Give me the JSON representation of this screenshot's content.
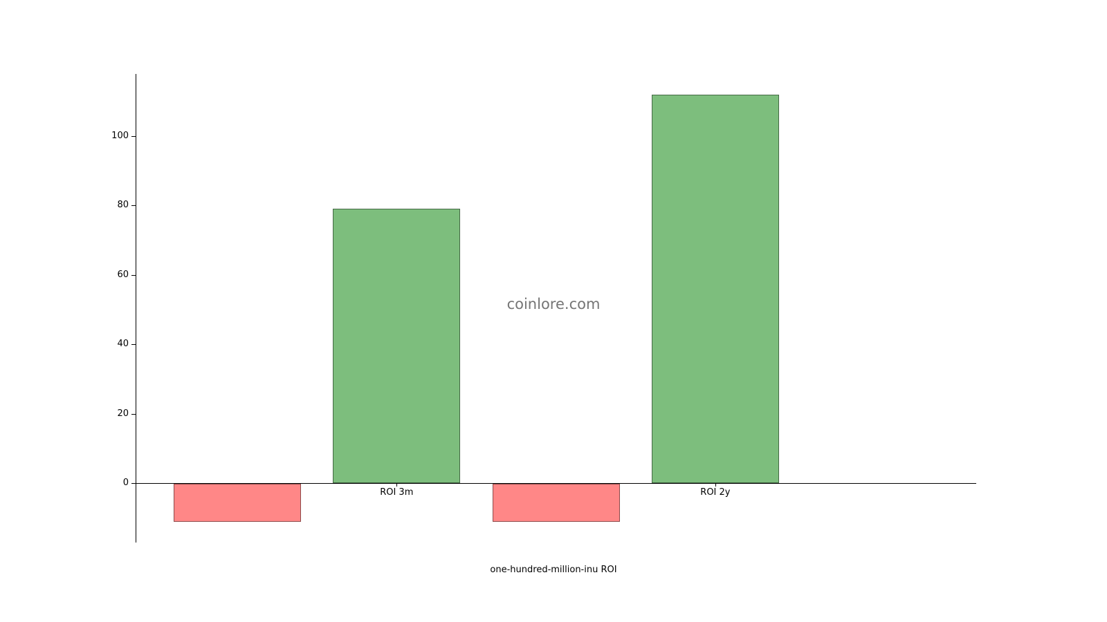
{
  "page": {
    "watermark": "coinlore.com"
  },
  "chart_data": {
    "type": "bar",
    "title": "one-hundred-million-inu ROI",
    "categories": [
      "",
      "ROI 3m",
      "",
      "ROI 2y"
    ],
    "values": [
      -11,
      79,
      -11,
      112
    ],
    "bar_names": [
      "roi-bar-1",
      "roi-bar-3m",
      "roi-bar-3",
      "roi-bar-2y"
    ],
    "colors": {
      "positive": "#7dbe7d",
      "negative": "#ff8787"
    },
    "yticks": [
      0,
      20,
      40,
      60,
      80,
      100
    ],
    "ylim": [
      -17,
      118
    ],
    "xlabel": "",
    "ylabel": "",
    "grid": false,
    "legend": false
  }
}
